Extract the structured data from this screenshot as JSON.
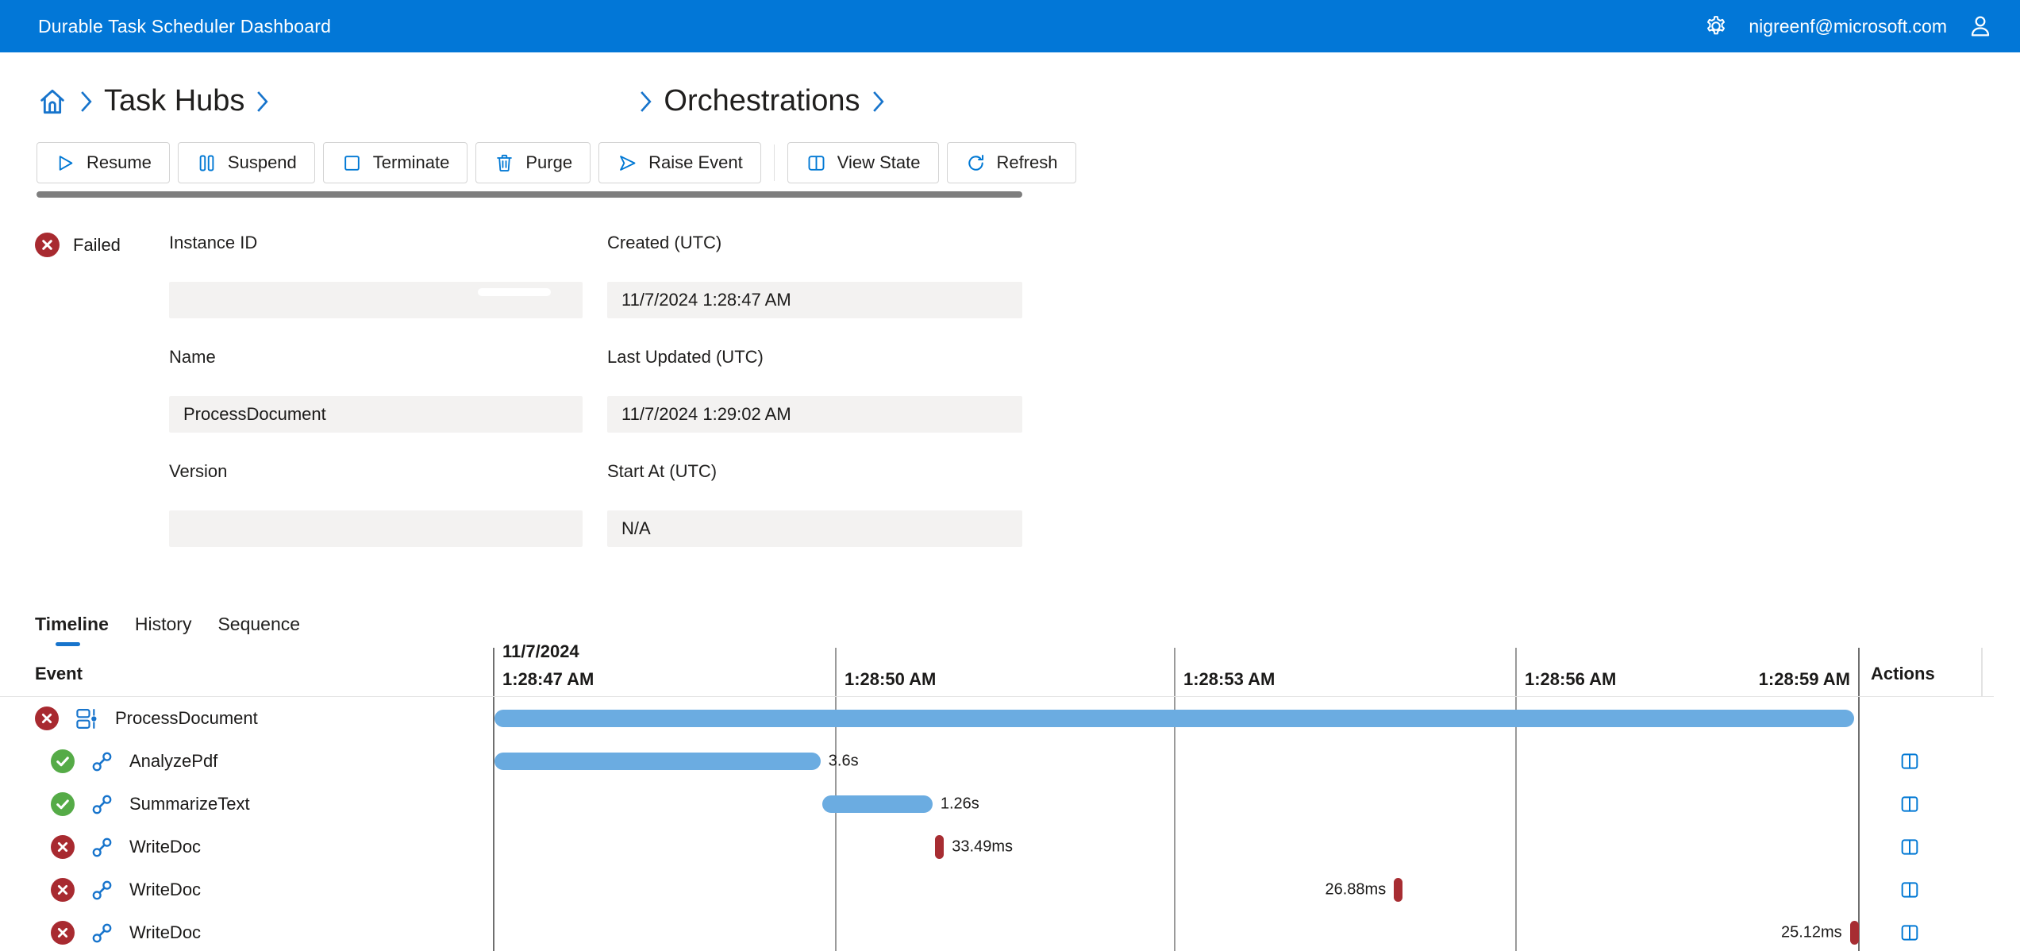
{
  "appbar": {
    "title": "Durable Task Scheduler Dashboard",
    "user_email": "nigreenf@microsoft.com",
    "icons": [
      "gear-icon",
      "person-icon"
    ],
    "background_color": "#0277d7"
  },
  "breadcrumb": {
    "home_icon": "home-icon",
    "items": [
      {
        "label": "Task Hubs"
      },
      {
        "label": "Orchestrations"
      }
    ]
  },
  "toolbar": {
    "buttons": [
      {
        "label": "Resume",
        "icon": "play-icon"
      },
      {
        "label": "Suspend",
        "icon": "pause-icon"
      },
      {
        "label": "Terminate",
        "icon": "stop-icon"
      },
      {
        "label": "Purge",
        "icon": "trash-icon"
      },
      {
        "label": "Raise Event",
        "icon": "send-icon"
      },
      {
        "label": "View State",
        "icon": "split-pane-icon"
      },
      {
        "label": "Refresh",
        "icon": "refresh-icon"
      }
    ],
    "icon_color": "#0078d4"
  },
  "details": {
    "status": {
      "label": "Failed",
      "color": "#a82a30"
    },
    "fields": [
      {
        "label": "Instance ID",
        "value": "",
        "redacted": true
      },
      {
        "label": "Created (UTC)",
        "value": "11/7/2024 1:28:47 AM"
      },
      {
        "label": "Name",
        "value": "ProcessDocument"
      },
      {
        "label": "Last Updated (UTC)",
        "value": "11/7/2024 1:29:02 AM"
      },
      {
        "label": "Version",
        "value": ""
      },
      {
        "label": "Start At (UTC)",
        "value": "N/A"
      }
    ]
  },
  "tabs": [
    {
      "label": "Timeline",
      "active": true
    },
    {
      "label": "History",
      "active": false
    },
    {
      "label": "Sequence",
      "active": false
    }
  ],
  "timeline": {
    "event_header": "Event",
    "actions_header": "Actions",
    "axis": {
      "date": "11/7/2024",
      "ticks": [
        "1:28:47 AM",
        "1:28:50 AM",
        "1:28:53 AM",
        "1:28:56 AM",
        "1:28:59 AM"
      ]
    },
    "bar_colors": {
      "blue": "#6bace1",
      "red": "#a72d32"
    },
    "status_colors": {
      "failed": "#a82a30",
      "succeeded": "#55ab47"
    },
    "rows": [
      {
        "name": "ProcessDocument",
        "status": "failed",
        "kind": "orchestration",
        "duration": "",
        "bar": {
          "left_pct": 0.1,
          "width_pct": 99.6,
          "color": "blue",
          "label_side": "none"
        },
        "has_actions": false
      },
      {
        "name": "AnalyzePdf",
        "status": "succeeded",
        "kind": "activity",
        "duration": "3.6s",
        "bar": {
          "left_pct": 0.1,
          "width_pct": 23.9,
          "color": "blue",
          "label_side": "right"
        },
        "has_actions": true
      },
      {
        "name": "SummarizeText",
        "status": "succeeded",
        "kind": "activity",
        "duration": "1.26s",
        "bar": {
          "left_pct": 24.1,
          "width_pct": 8.1,
          "color": "blue",
          "label_side": "right"
        },
        "has_actions": true
      },
      {
        "name": "WriteDoc",
        "status": "failed",
        "kind": "activity",
        "duration": "33.49ms",
        "bar": {
          "left_pct": 32.4,
          "width_pct": 0.64,
          "color": "red",
          "label_side": "right"
        },
        "has_actions": true
      },
      {
        "name": "WriteDoc",
        "status": "failed",
        "kind": "activity",
        "duration": "26.88ms",
        "bar": {
          "left_pct": 66.0,
          "width_pct": 0.64,
          "color": "red",
          "label_side": "left"
        },
        "has_actions": true
      },
      {
        "name": "WriteDoc",
        "status": "failed",
        "kind": "activity",
        "duration": "25.12ms",
        "bar": {
          "left_pct": 99.4,
          "width_pct": 0.64,
          "color": "red",
          "label_side": "left"
        },
        "has_actions": true
      }
    ]
  }
}
